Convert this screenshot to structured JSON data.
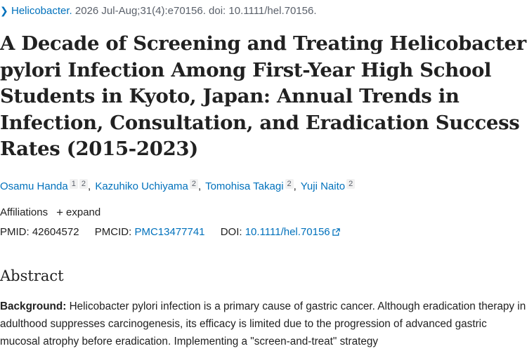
{
  "citation": {
    "journal": "Helicobacter.",
    "details": "2026 Jul-Aug;31(4):e70156. doi: 10.1111/hel.70156."
  },
  "article": {
    "title": "A Decade of Screening and Treating Helicobacter pylori Infection Among First-Year High School Students in Kyoto, Japan: Annual Trends in Infection, Consultation, and Eradication Success Rates (2015-2023)"
  },
  "authors": [
    {
      "name": "Osamu Handa",
      "affs": [
        "1",
        "2"
      ]
    },
    {
      "name": "Kazuhiko Uchiyama",
      "affs": [
        "2"
      ]
    },
    {
      "name": "Tomohisa Takagi",
      "affs": [
        "2"
      ]
    },
    {
      "name": "Yuji Naito",
      "affs": [
        "2"
      ]
    }
  ],
  "affiliations": {
    "label": "Affiliations",
    "expand_label": "expand"
  },
  "identifiers": {
    "pmid_label": "PMID:",
    "pmid": "42604572",
    "pmcid_label": "PMCID:",
    "pmcid": "PMC13477741",
    "doi_label": "DOI:",
    "doi": "10.1111/hel.70156"
  },
  "abstract": {
    "heading": "Abstract",
    "background_label": "Background:",
    "background_text": " Helicobacter pylori infection is a primary cause of gastric cancer. Although eradication therapy in adulthood suppresses carcinogenesis, its efficacy is limited due to the progression of advanced gastric mucosal atrophy before eradication. Implementing a \"screen-and-treat\" strategy"
  },
  "colors": {
    "link": "#0071bc",
    "text": "#212121",
    "muted": "#5b616b"
  }
}
